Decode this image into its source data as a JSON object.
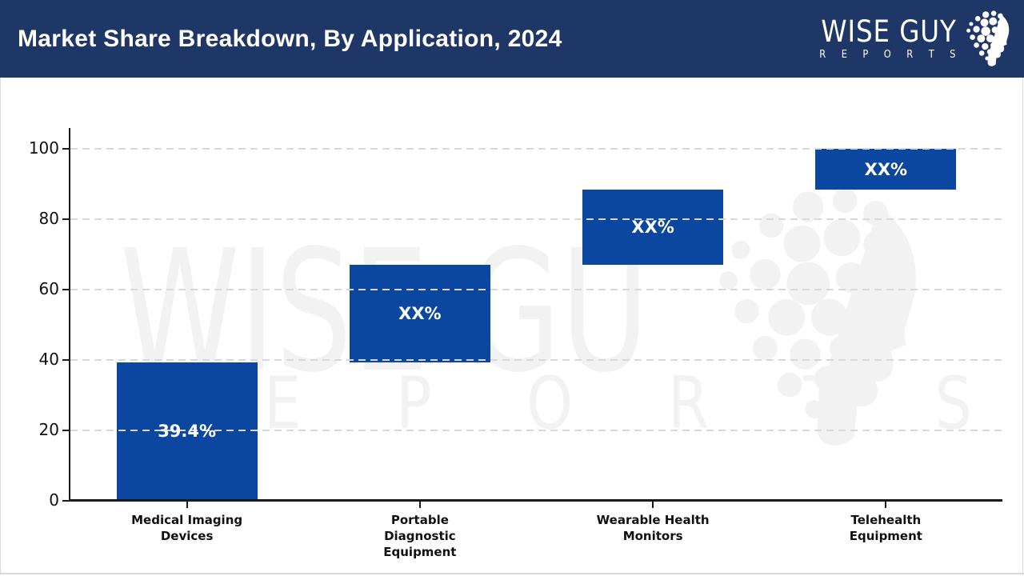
{
  "header": {
    "title": "Market Share Breakdown, By Application, 2024",
    "logo": {
      "line1": "WISE GUY",
      "line2": "R E P O R T S"
    }
  },
  "watermark": {
    "line1": "WISE GU",
    "line2": "R E P O R T S"
  },
  "chart_data": {
    "type": "bar",
    "subtype": "floating-waterfall",
    "title": "Market Share Breakdown, By Application, 2024",
    "categories": [
      "Medical Imaging\nDevices",
      "Portable\nDiagnostic\nEquipment",
      "Wearable Health\nMonitors",
      "Telehealth\nEquipment"
    ],
    "segments": [
      {
        "category": "Medical Imaging Devices",
        "start": 0,
        "end": 39.4,
        "label": "39.4%"
      },
      {
        "category": "Portable Diagnostic Equipment",
        "start": 39.4,
        "end": 67.0,
        "label": "XX%"
      },
      {
        "category": "Wearable Health Monitors",
        "start": 67.0,
        "end": 88.4,
        "label": "XX%"
      },
      {
        "category": "Telehealth Equipment",
        "start": 88.4,
        "end": 100.0,
        "label": "XX%"
      }
    ],
    "ylabel": "",
    "xlabel": "",
    "yticks": [
      0,
      20,
      40,
      60,
      80,
      100
    ],
    "ylim": [
      0,
      106
    ],
    "grid": "horizontal-dashed-over-bars",
    "legend": "none",
    "bar_color": "#0b47a1",
    "value_label_color": "#ffffff"
  },
  "colors": {
    "header_bg": "#1f3767",
    "bar": "#0b47a1",
    "gridline": "#d8d8d8",
    "axis": "#1a1a1a",
    "watermark": "#f2f2f2"
  }
}
